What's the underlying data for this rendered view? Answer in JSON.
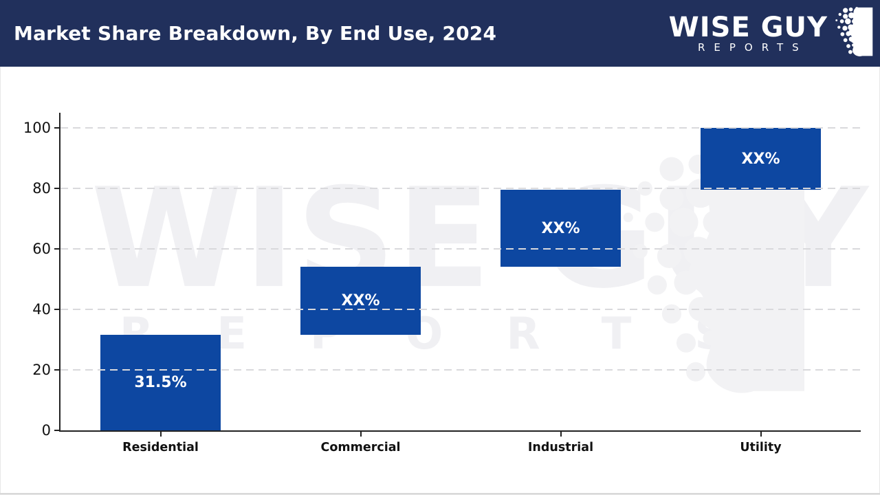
{
  "header": {
    "background": "#21305c",
    "logo": {
      "name": "WISE GUY",
      "subtext": "REPORTS"
    }
  },
  "watermark": {
    "line1": "WISE GUY",
    "line2": "REPORTS"
  },
  "chart_data": {
    "type": "bar",
    "subtype": "waterfall",
    "title": "Market Share Breakdown, By End Use, 2024",
    "categories": [
      "Residential",
      "Commercial",
      "Industrial",
      "Utility"
    ],
    "series": [
      {
        "name": "Market Share",
        "segments": [
          {
            "category": "Residential",
            "start": 0,
            "end": 31.5,
            "label": "31.5%"
          },
          {
            "category": "Commercial",
            "start": 31.5,
            "end": 54,
            "label": "XX%"
          },
          {
            "category": "Industrial",
            "start": 54,
            "end": 79.5,
            "label": "XX%"
          },
          {
            "category": "Utility",
            "start": 79.5,
            "end": 100,
            "label": "XX%"
          }
        ]
      }
    ],
    "xlabel": "",
    "ylabel": "",
    "ylim": [
      0,
      100
    ],
    "yticks": [
      0,
      20,
      40,
      60,
      80,
      100
    ],
    "grid": "horizontal-dashed",
    "legend": "none",
    "bar_color": "#0d47a1",
    "bar_label_color": "#ffffff",
    "grid_color": "#d9d9dc",
    "axis_color": "#222222"
  }
}
